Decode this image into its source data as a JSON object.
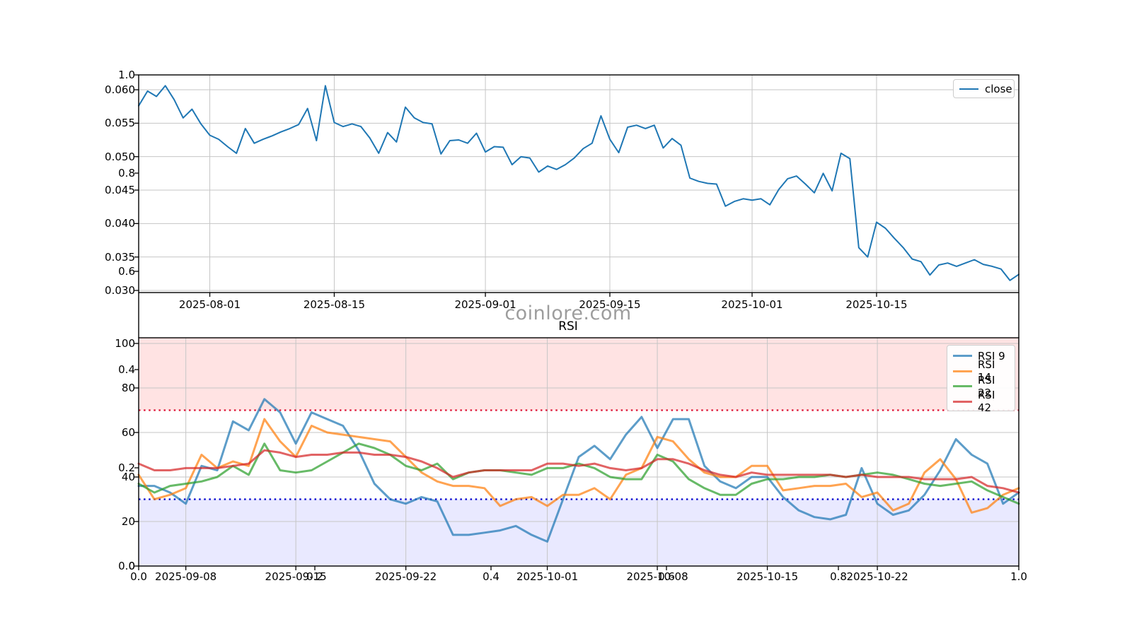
{
  "watermark": "coinlore.com",
  "rsi_title": "RSI",
  "secondary_axis": {
    "y_ticks": [
      "1.0",
      "0.8",
      "0.6",
      "0.4",
      "0.2",
      "0.0"
    ],
    "x_ticks": [
      "0.0",
      "0.2",
      "0.4",
      "0.6",
      "0.8",
      "1.0"
    ]
  },
  "chart_data": [
    {
      "type": "line",
      "title": "",
      "xlabel": "",
      "ylabel": "",
      "grid": true,
      "legend_position": "upper right",
      "x_start": "2025-07-24",
      "x_end": "2025-10-31",
      "x_ticks": [
        "2025-08-01",
        "2025-08-15",
        "2025-09-01",
        "2025-09-15",
        "2025-10-01",
        "2025-10-15"
      ],
      "y_ticks": [
        0.03,
        0.035,
        0.04,
        0.045,
        0.05,
        0.055,
        0.06
      ],
      "ylim": [
        0.0297,
        0.0623
      ],
      "series": [
        {
          "name": "close",
          "color": "#1f77b4",
          "values": [
            0.0576,
            0.0598,
            0.059,
            0.0606,
            0.0585,
            0.0558,
            0.0571,
            0.0549,
            0.0532,
            0.0526,
            0.0515,
            0.0505,
            0.0542,
            0.052,
            0.0526,
            0.0531,
            0.0537,
            0.0542,
            0.0548,
            0.0572,
            0.0524,
            0.0606,
            0.0551,
            0.0545,
            0.0549,
            0.0545,
            0.0528,
            0.0505,
            0.0536,
            0.0522,
            0.0574,
            0.0558,
            0.0551,
            0.0549,
            0.0504,
            0.0524,
            0.0525,
            0.052,
            0.0535,
            0.0507,
            0.0515,
            0.0514,
            0.0488,
            0.05,
            0.0498,
            0.0477,
            0.0486,
            0.0481,
            0.0488,
            0.0498,
            0.0512,
            0.052,
            0.0561,
            0.0526,
            0.0506,
            0.0544,
            0.0547,
            0.0542,
            0.0547,
            0.0513,
            0.0527,
            0.0517,
            0.0468,
            0.0463,
            0.046,
            0.0459,
            0.0426,
            0.0433,
            0.0437,
            0.0435,
            0.0437,
            0.0428,
            0.0451,
            0.0467,
            0.0471,
            0.0459,
            0.0446,
            0.0475,
            0.0449,
            0.0505,
            0.0497,
            0.0364,
            0.035,
            0.0402,
            0.0393,
            0.0378,
            0.0364,
            0.0347,
            0.0343,
            0.0323,
            0.0338,
            0.0341,
            0.0336,
            0.0341,
            0.0346,
            0.0339,
            0.0336,
            0.0332,
            0.0315,
            0.0324
          ]
        }
      ]
    },
    {
      "type": "line",
      "title": "RSI",
      "xlabel": "",
      "ylabel": "",
      "grid": true,
      "legend_position": "upper right",
      "x_start": "2025-09-05",
      "x_end": "2025-10-31",
      "x_ticks": [
        "2025-09-08",
        "2025-09-15",
        "2025-09-22",
        "2025-10-01",
        "2025-10-08",
        "2025-10-15",
        "2025-10-22"
      ],
      "y_ticks": [
        0,
        20,
        40,
        60,
        80,
        100
      ],
      "ylim": [
        0,
        102.5
      ],
      "overbought_level": 70,
      "oversold_level": 30,
      "bands": [
        {
          "name": "overbought",
          "from": 70,
          "to": 102.5,
          "fill": "rgba(255,0,0,0.11)",
          "line_color": "#dd1133"
        },
        {
          "name": "oversold",
          "from": 0,
          "to": 30,
          "fill": "rgba(40,40,255,0.10)",
          "line_color": "#0000cc"
        }
      ],
      "series": [
        {
          "name": "RSI 9",
          "color": "#1f77b4",
          "values": [
            36,
            36,
            33,
            28,
            45,
            43,
            65,
            61,
            75,
            69,
            55,
            69,
            66,
            63,
            52,
            37,
            30,
            28,
            31,
            29,
            14,
            14,
            15,
            16,
            18,
            14,
            11,
            30,
            49,
            54,
            48,
            59,
            67,
            53,
            66,
            66,
            45,
            38,
            35,
            40,
            40,
            31,
            25,
            22,
            21,
            23,
            44,
            28,
            23,
            25,
            32,
            43,
            57,
            50,
            46,
            28,
            33
          ]
        },
        {
          "name": "RSI 14",
          "color": "#ff7f0e",
          "values": [
            41,
            30,
            32,
            35,
            50,
            44,
            47,
            45,
            66,
            56,
            49,
            63,
            60,
            59,
            58,
            57,
            56,
            49,
            42,
            38,
            36,
            36,
            35,
            27,
            30,
            31,
            27,
            32,
            32,
            35,
            30,
            41,
            44,
            58,
            56,
            48,
            42,
            40,
            40,
            45,
            45,
            34,
            35,
            36,
            36,
            37,
            31,
            33,
            25,
            28,
            42,
            48,
            39,
            24,
            26,
            32,
            35
          ]
        },
        {
          "name": "RSI 22",
          "color": "#2ca02c",
          "values": [
            37,
            33,
            36,
            37,
            38,
            40,
            45,
            41,
            55,
            43,
            42,
            43,
            47,
            51,
            55,
            53,
            50,
            45,
            43,
            46,
            39,
            42,
            43,
            43,
            42,
            41,
            44,
            44,
            46,
            44,
            40,
            39,
            39,
            50,
            47,
            39,
            35,
            32,
            32,
            37,
            39,
            39,
            40,
            40,
            41,
            40,
            41,
            42,
            41,
            39,
            37,
            36,
            37,
            38,
            34,
            31,
            28
          ]
        },
        {
          "name": "RSI 42",
          "color": "#d62728",
          "values": [
            46,
            43,
            43,
            44,
            44,
            44,
            45,
            46,
            52,
            51,
            49,
            50,
            50,
            51,
            51,
            50,
            50,
            49,
            47,
            44,
            40,
            42,
            43,
            43,
            43,
            43,
            46,
            46,
            45,
            46,
            44,
            43,
            44,
            48,
            48,
            46,
            43,
            41,
            40,
            42,
            41,
            41,
            41,
            41,
            41,
            40,
            41,
            40,
            40,
            40,
            39,
            39,
            39,
            40,
            36,
            35,
            33
          ]
        }
      ]
    }
  ]
}
